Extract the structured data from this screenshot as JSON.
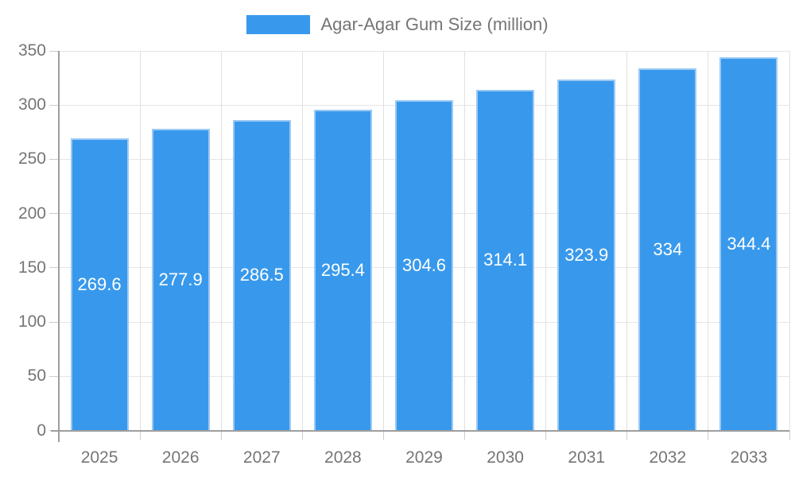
{
  "legend": {
    "label": "Agar-Agar Gum Size (million)"
  },
  "chart_data": {
    "type": "bar",
    "title": "Agar-Agar Gum Size (million)",
    "categories": [
      "2025",
      "2026",
      "2027",
      "2028",
      "2029",
      "2030",
      "2031",
      "2032",
      "2033"
    ],
    "values": [
      269.6,
      277.9,
      286.5,
      295.4,
      304.6,
      314.1,
      323.9,
      334,
      344.4
    ],
    "value_labels": [
      "269.6",
      "277.9",
      "286.5",
      "295.4",
      "304.6",
      "314.1",
      "323.9",
      "334",
      "344.4"
    ],
    "xlabel": "",
    "ylabel": "",
    "ylim": [
      0,
      350
    ],
    "ytick_step": 50,
    "ytick_labels": [
      "0",
      "50",
      "100",
      "150",
      "200",
      "250",
      "300",
      "350"
    ],
    "grid": true,
    "legend_position": "top",
    "bar_color": "#3899ec",
    "bar_edge_color": "#9cc9f4",
    "label_color": "#757575",
    "value_label_color": "#ffffff"
  }
}
